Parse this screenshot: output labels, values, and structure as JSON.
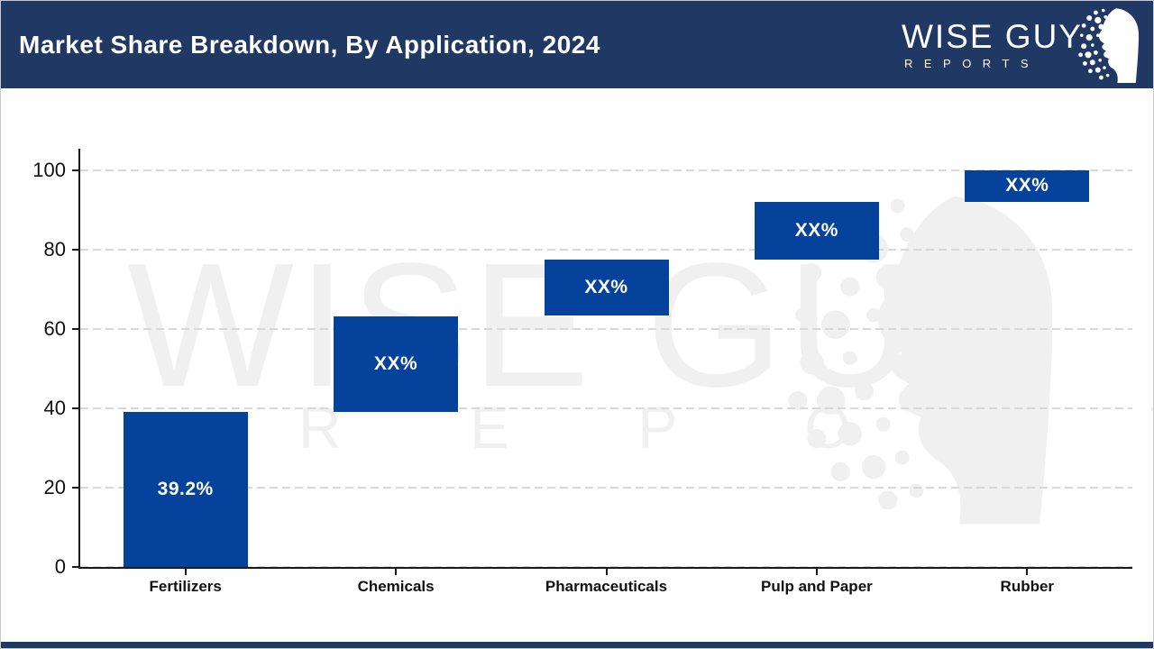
{
  "header": {
    "title": "Market Share Breakdown, By Application, 2024",
    "logo": {
      "line1": "WISE GUY",
      "line2": "REPORTS"
    }
  },
  "watermark": {
    "line1": "WISE GUY",
    "line2": "REPORTS"
  },
  "colors": {
    "header_bg": "#1F3864",
    "footer_bg": "#1F3864",
    "bar": "#05429C",
    "grid": "#D8D8D8",
    "axis": "#1A1A1A",
    "watermark": "#F0F0F0",
    "bar_label": "#FFFFFF",
    "title_text": "#FFFFFF"
  },
  "chart_data": {
    "type": "bar",
    "subtype": "waterfall",
    "title": "Market Share Breakdown, By Application, 2024",
    "categories": [
      "Fertilizers",
      "Chemicals",
      "Pharmaceuticals",
      "Pulp and Paper",
      "Rubber"
    ],
    "segments": [
      {
        "category": "Fertilizers",
        "start": 0,
        "end": 39.2,
        "label": "39.2%"
      },
      {
        "category": "Chemicals",
        "start": 39.2,
        "end": 63.3,
        "label": "XX%"
      },
      {
        "category": "Pharmaceuticals",
        "start": 63.3,
        "end": 77.6,
        "label": "XX%"
      },
      {
        "category": "Pulp and Paper",
        "start": 77.6,
        "end": 92.1,
        "label": "XX%"
      },
      {
        "category": "Rubber",
        "start": 92.1,
        "end": 100,
        "label": "XX%"
      }
    ],
    "yticks": [
      0,
      20,
      40,
      60,
      80,
      100
    ],
    "ylim": [
      0,
      104.5
    ],
    "xlabel": "",
    "ylabel": "",
    "grid": "horizontal-dashed",
    "legend": "none"
  }
}
